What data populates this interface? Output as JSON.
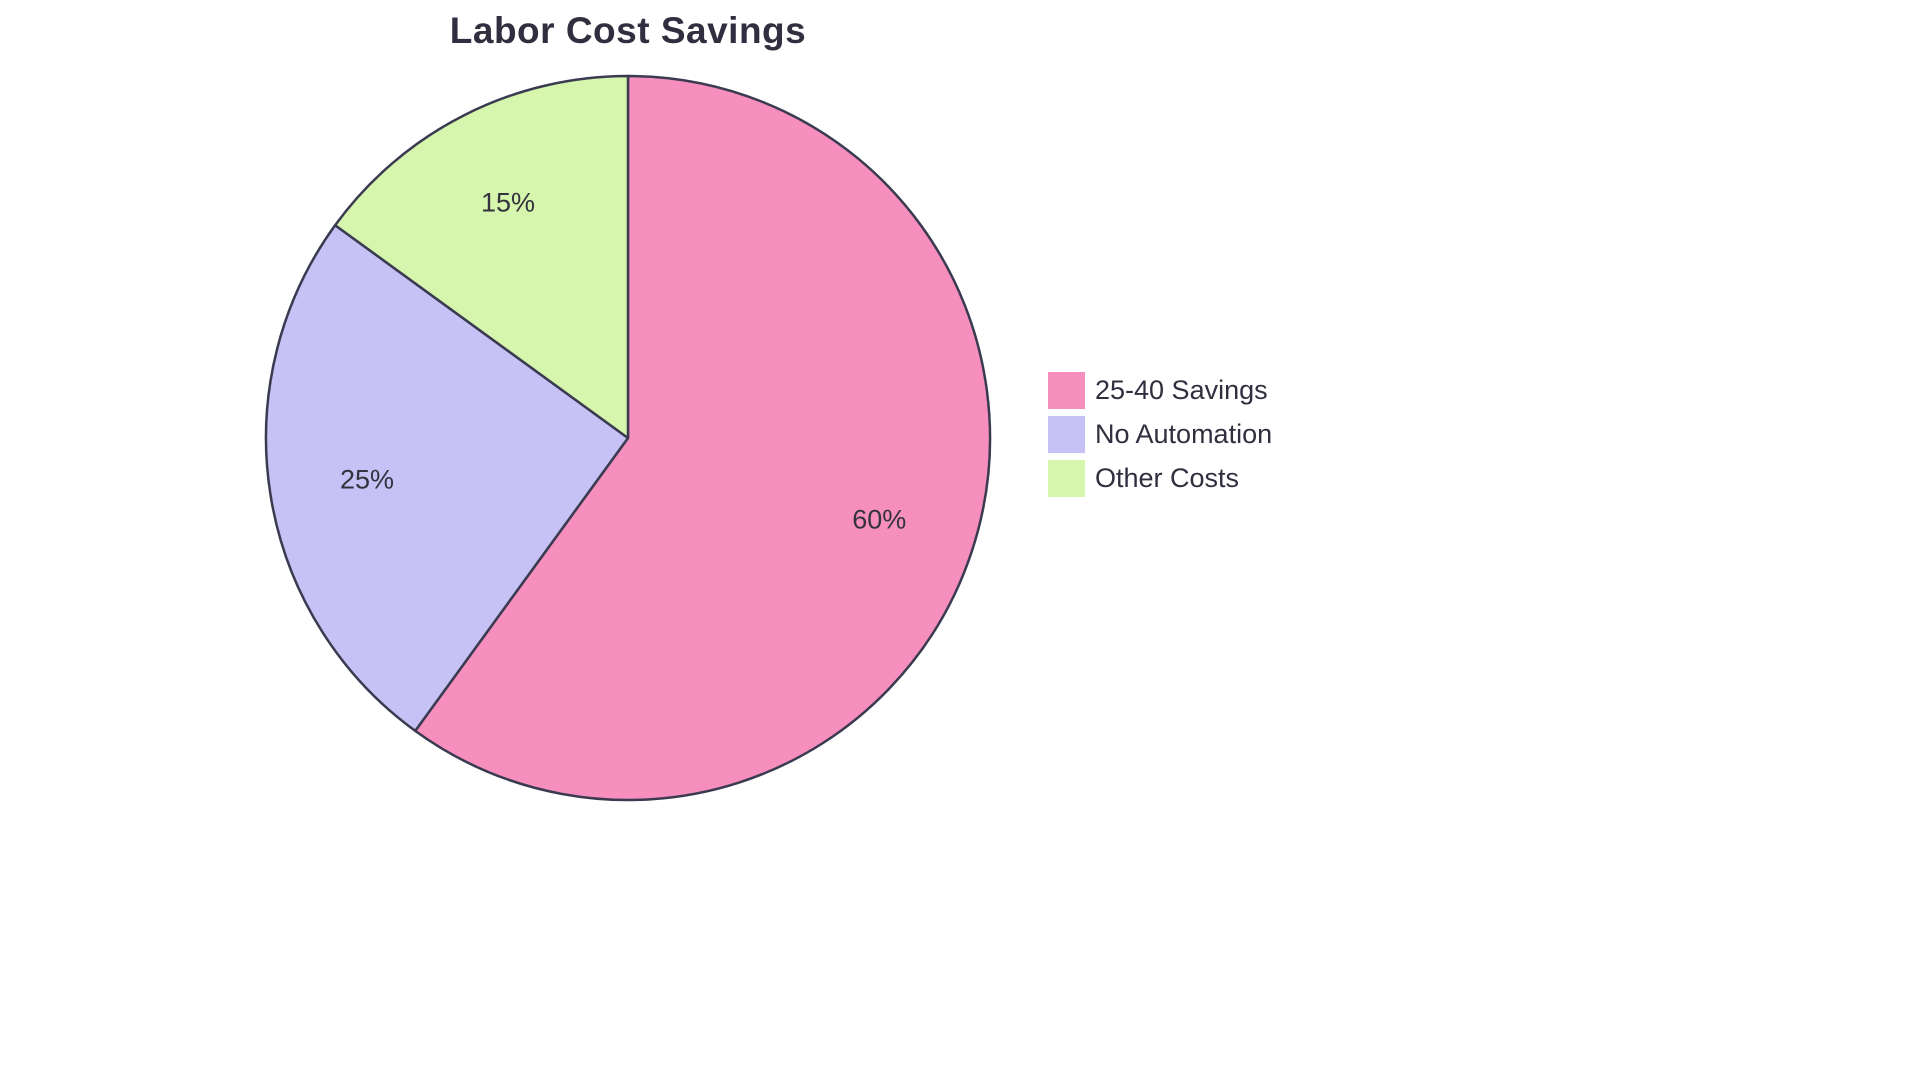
{
  "chart_data": {
    "type": "pie",
    "title": "Labor Cost Savings",
    "slices": [
      {
        "label": "25-40 Savings",
        "value": 60,
        "percent_label": "60%",
        "color": "#F78FBE"
      },
      {
        "label": "No Automation",
        "value": 25,
        "percent_label": "25%",
        "color": "#C6C2F5"
      },
      {
        "label": "Other Costs",
        "value": 15,
        "percent_label": "15%",
        "color": "#D6F5AD"
      }
    ],
    "start_angle_deg": 0,
    "direction": "clockwise",
    "stroke_color": "#3A3A50",
    "label_color": "#33333E",
    "title_color": "#2F2F3F",
    "legend_position": "right",
    "background_color": "#FFFFFF"
  }
}
